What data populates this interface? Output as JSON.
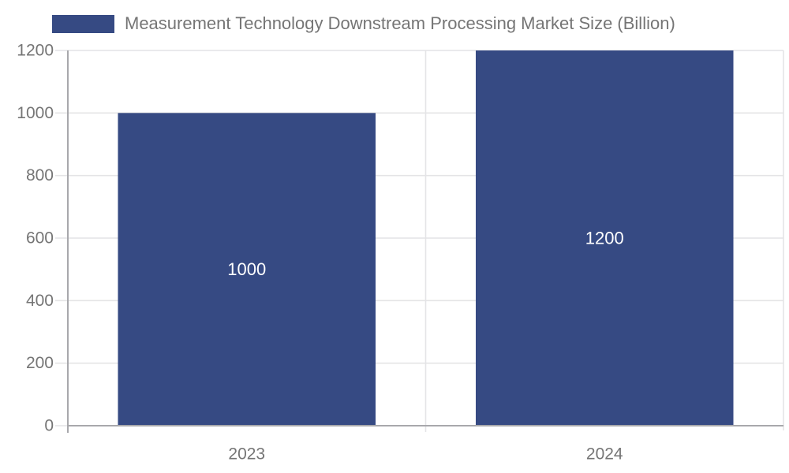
{
  "page": {
    "background_color": "#ffffff"
  },
  "legend": {
    "label": "Measurement Technology Downstream Processing Market Size (Billion)",
    "swatch_color": "#364A83"
  },
  "chart_data": {
    "type": "bar",
    "title": "Measurement Technology Downstream Processing Market Size (Billion)",
    "categories": [
      "2023",
      "2024"
    ],
    "values": [
      1000,
      1200
    ],
    "bar_labels": [
      "1000",
      "1200"
    ],
    "xlabel": "",
    "ylabel": "",
    "ylim": [
      0,
      1200
    ],
    "yticks": [
      0,
      200,
      400,
      600,
      800,
      1000,
      1200
    ],
    "grid": true,
    "legend_position": "top-left",
    "bar_color": "#364A83",
    "bar_label_color": "#ffffff",
    "grid_color": "#E4E4E6",
    "axis_color": "#A8A8AC",
    "tick_text_color": "#757575"
  }
}
